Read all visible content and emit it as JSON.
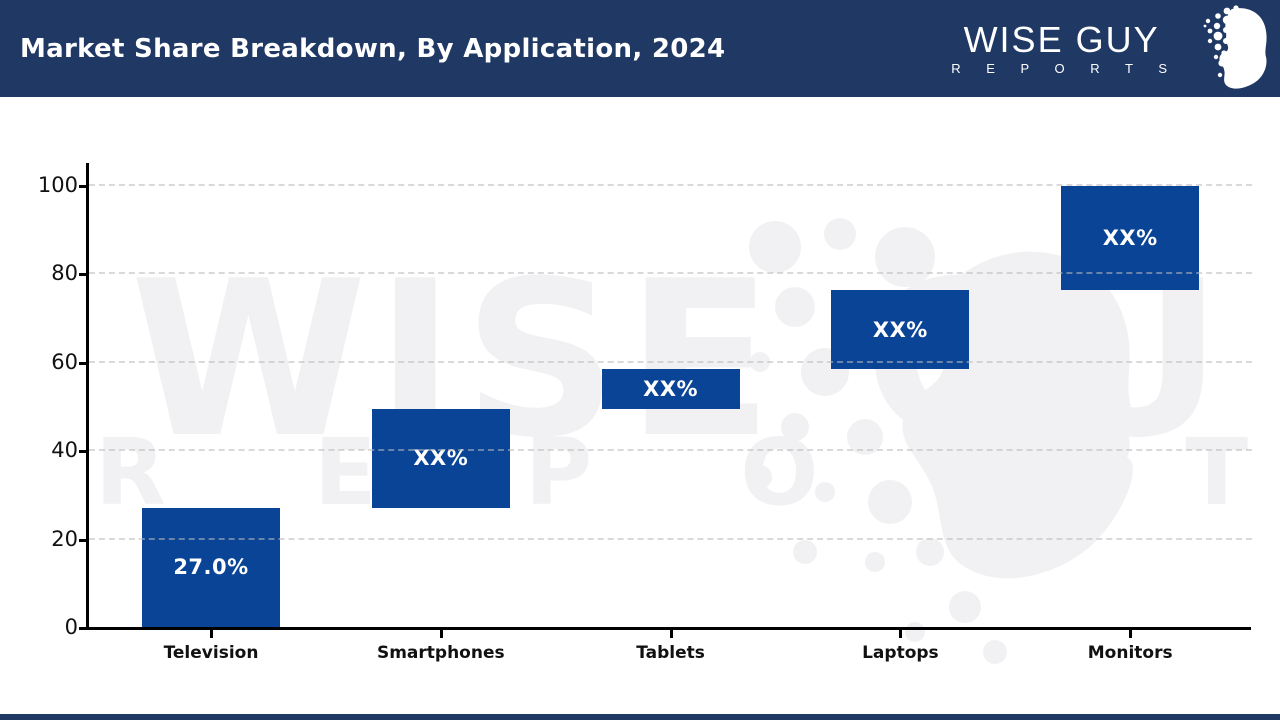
{
  "header": {
    "title": "Market Share Breakdown, By Application, 2024",
    "logo": {
      "line1": "WISE GUY",
      "line2": "R E P O R T S"
    }
  },
  "colors": {
    "header_bg": "#1f3864",
    "footer_bg": "#1f3864",
    "bar_fill": "#0a4497",
    "bar_label_text": "#ffffff",
    "axis": "#000000",
    "gridline": "#bababa",
    "watermark": "#f1f1f3"
  },
  "chart_data": {
    "type": "bar",
    "subtype": "waterfall",
    "title": "Market Share Breakdown, By Application, 2024",
    "xlabel": "",
    "ylabel": "",
    "categories": [
      "Television",
      "Smartphones",
      "Tablets",
      "Laptops",
      "Monitors"
    ],
    "segments": [
      {
        "category": "Television",
        "start": 0,
        "end": 27.0,
        "label": "27.0%"
      },
      {
        "category": "Smartphones",
        "start": 27.0,
        "end": 49.3,
        "label": "XX%"
      },
      {
        "category": "Tablets",
        "start": 49.4,
        "end": 58.3,
        "label": "XX%"
      },
      {
        "category": "Laptops",
        "start": 58.3,
        "end": 76.2,
        "label": "XX%"
      },
      {
        "category": "Monitors",
        "start": 76.3,
        "end": 99.8,
        "label": "XX%"
      }
    ],
    "y_ticks": [
      0,
      20,
      40,
      60,
      80,
      100
    ],
    "ylim": [
      0,
      105
    ],
    "grid": "horizontal-dashed",
    "legend": "none",
    "watermark_line1": "WISE GU",
    "watermark_line2": "R E P O R T S"
  }
}
